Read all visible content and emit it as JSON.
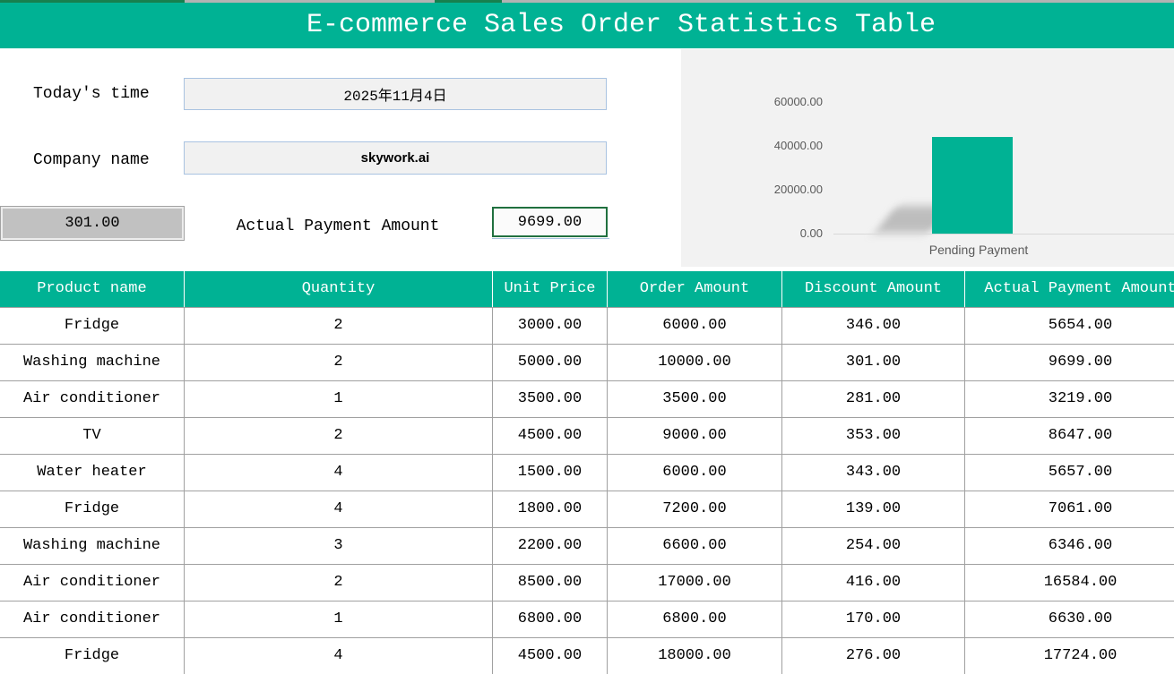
{
  "banner": {
    "title": "E-commerce Sales Order Statistics Table"
  },
  "form": {
    "date_label": "Today's time",
    "date_value": "2025年11月4日",
    "company_label": "Company name",
    "company_value": "skywork.ai",
    "discount_value": "301.00",
    "payment_label": "Actual Payment Amount",
    "payment_value": "9699.00"
  },
  "chart_data": {
    "type": "bar",
    "title": "",
    "categories": [
      "Pending Payment"
    ],
    "values": [
      44000
    ],
    "ytick_labels": [
      "60000.00",
      "40000.00",
      "20000.00",
      "0.00"
    ],
    "yticks": [
      60000,
      40000,
      20000,
      0
    ],
    "ylim": [
      0,
      60000
    ],
    "xlabel": "",
    "ylabel": "",
    "grid": false,
    "legend": false,
    "bar_color": "#00b294",
    "plot_bg": "#f2f2f2"
  },
  "table": {
    "columns": [
      "Product name",
      "Quantity",
      "Unit Price",
      "Order Amount",
      "Discount Amount",
      "Actual Payment Amount"
    ],
    "rows": [
      [
        "Fridge",
        "2",
        "3000.00",
        "6000.00",
        "346.00",
        "5654.00"
      ],
      [
        "Washing machine",
        "2",
        "5000.00",
        "10000.00",
        "301.00",
        "9699.00"
      ],
      [
        "Air conditioner",
        "1",
        "3500.00",
        "3500.00",
        "281.00",
        "3219.00"
      ],
      [
        "TV",
        "2",
        "4500.00",
        "9000.00",
        "353.00",
        "8647.00"
      ],
      [
        "Water heater",
        "4",
        "1500.00",
        "6000.00",
        "343.00",
        "5657.00"
      ],
      [
        "Fridge",
        "4",
        "1800.00",
        "7200.00",
        "139.00",
        "7061.00"
      ],
      [
        "Washing machine",
        "3",
        "2200.00",
        "6600.00",
        "254.00",
        "6346.00"
      ],
      [
        "Air conditioner",
        "2",
        "8500.00",
        "17000.00",
        "416.00",
        "16584.00"
      ],
      [
        "Air conditioner",
        "1",
        "6800.00",
        "6800.00",
        "170.00",
        "6630.00"
      ],
      [
        "Fridge",
        "4",
        "4500.00",
        "18000.00",
        "276.00",
        "17724.00"
      ]
    ]
  },
  "colors": {
    "accent": "#00b294",
    "dark_green_edge": "#17804f",
    "gray_edge": "#b3b3b3",
    "grid_line": "#a0a0a0",
    "plot_bg": "#f2f2f2",
    "selected_border": "#20703f",
    "input_border": "#a9c3e1",
    "tick_text": "#595959"
  }
}
